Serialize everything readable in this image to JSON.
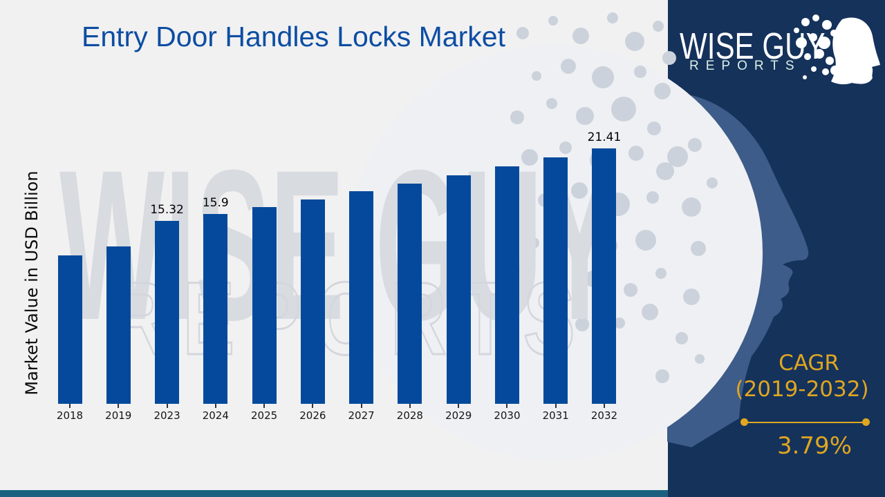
{
  "title": "Entry Door Handles Locks Market",
  "watermark": {
    "line1": "WISE GUY",
    "line2": "REPORTS"
  },
  "brand": {
    "name_line1": "WISE GUY",
    "name_line2": "REPORTS",
    "cagr_label": "CAGR",
    "cagr_range": "(2019-2032)",
    "cagr_value": "3.79%"
  },
  "colors": {
    "background": "#f1f1f2",
    "bar": "#05499c",
    "title": "#0c4da2",
    "panel_navy": "#15325b",
    "accent_gold": "#dfa61f",
    "footer_teal": "#1b617f"
  },
  "chart_data": {
    "type": "bar",
    "title": "Entry Door Handles Locks Market",
    "xlabel": "",
    "ylabel": "Market Value in USD Billion",
    "categories": [
      "2018",
      "2019",
      "2023",
      "2024",
      "2025",
      "2026",
      "2027",
      "2028",
      "2029",
      "2030",
      "2031",
      "2032"
    ],
    "values": [
      12.45,
      13.2,
      15.32,
      15.9,
      16.5,
      17.13,
      17.78,
      18.45,
      19.15,
      19.88,
      20.63,
      21.41
    ],
    "data_labels": {
      "2023": "15.32",
      "2024": "15.9",
      "2032": "21.41"
    },
    "units": "USD Billion",
    "ylim": [
      0,
      23
    ],
    "grid": false,
    "legend_position": "none"
  }
}
